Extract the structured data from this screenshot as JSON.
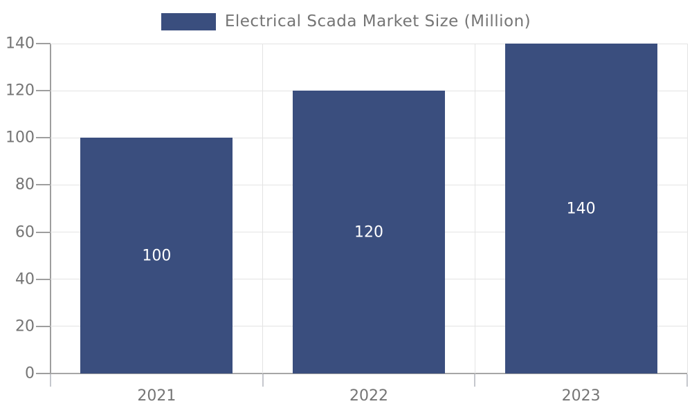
{
  "chart_data": {
    "type": "bar",
    "title": "",
    "series_name": "Electrical Scada Market Size (Million)",
    "categories": [
      "2021",
      "2022",
      "2023"
    ],
    "values": [
      100,
      120,
      140
    ],
    "data_labels": [
      "100",
      "120",
      "140"
    ],
    "xlabel": "",
    "ylabel": "",
    "ylim": [
      0,
      140
    ],
    "yticks": [
      0,
      20,
      40,
      60,
      80,
      100,
      120,
      140
    ],
    "grid": true,
    "legend_position": "top-center",
    "bar_color": "#3a4e7e",
    "data_label_color": "#ffffff",
    "axis_text_color": "#757575",
    "gridline_color": "#e3e3e3"
  },
  "legend": {
    "label": "Electrical Scada Market Size (Million)"
  }
}
